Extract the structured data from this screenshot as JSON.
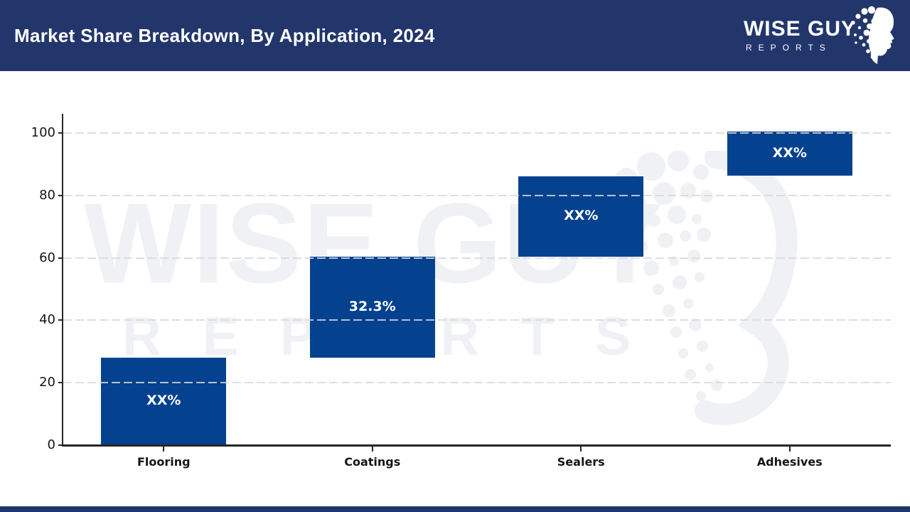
{
  "header": {
    "title": "Market Share Breakdown, By Application, 2024",
    "logo": {
      "line1": "WISE GUY",
      "line2": "REPORTS"
    }
  },
  "watermark": {
    "line1": "WISE GUY",
    "line2": "REPORTS"
  },
  "chart_data": {
    "type": "bar",
    "subtype": "waterfall-floating-bars",
    "title": "Market Share Breakdown, By Application, 2024",
    "categories": [
      "Flooring",
      "Coatings",
      "Sealers",
      "Adhesives"
    ],
    "segments": [
      {
        "category": "Flooring",
        "start": 0,
        "end": 28.1,
        "label": "XX%"
      },
      {
        "category": "Coatings",
        "start": 28.1,
        "end": 60.4,
        "label": "32.3%"
      },
      {
        "category": "Sealers",
        "start": 60.4,
        "end": 86.2,
        "label": "XX%"
      },
      {
        "category": "Adhesives",
        "start": 86.3,
        "end": 100.4,
        "label": "XX%"
      }
    ],
    "y_ticks": [
      0,
      20,
      40,
      60,
      80,
      100
    ],
    "ylim": [
      0,
      105
    ],
    "xlabel": "",
    "ylabel": "",
    "grid": "horizontal-dashed",
    "legend": "none"
  },
  "colors": {
    "header_bg": "#22366b",
    "footer_bg": "#22366b",
    "bar": "#04418f",
    "gridline": "#d9d9d9",
    "axis": "#262626",
    "tick_text": "#151515",
    "bar_label_text": "#ffffff",
    "watermark": "#eff1f4"
  }
}
